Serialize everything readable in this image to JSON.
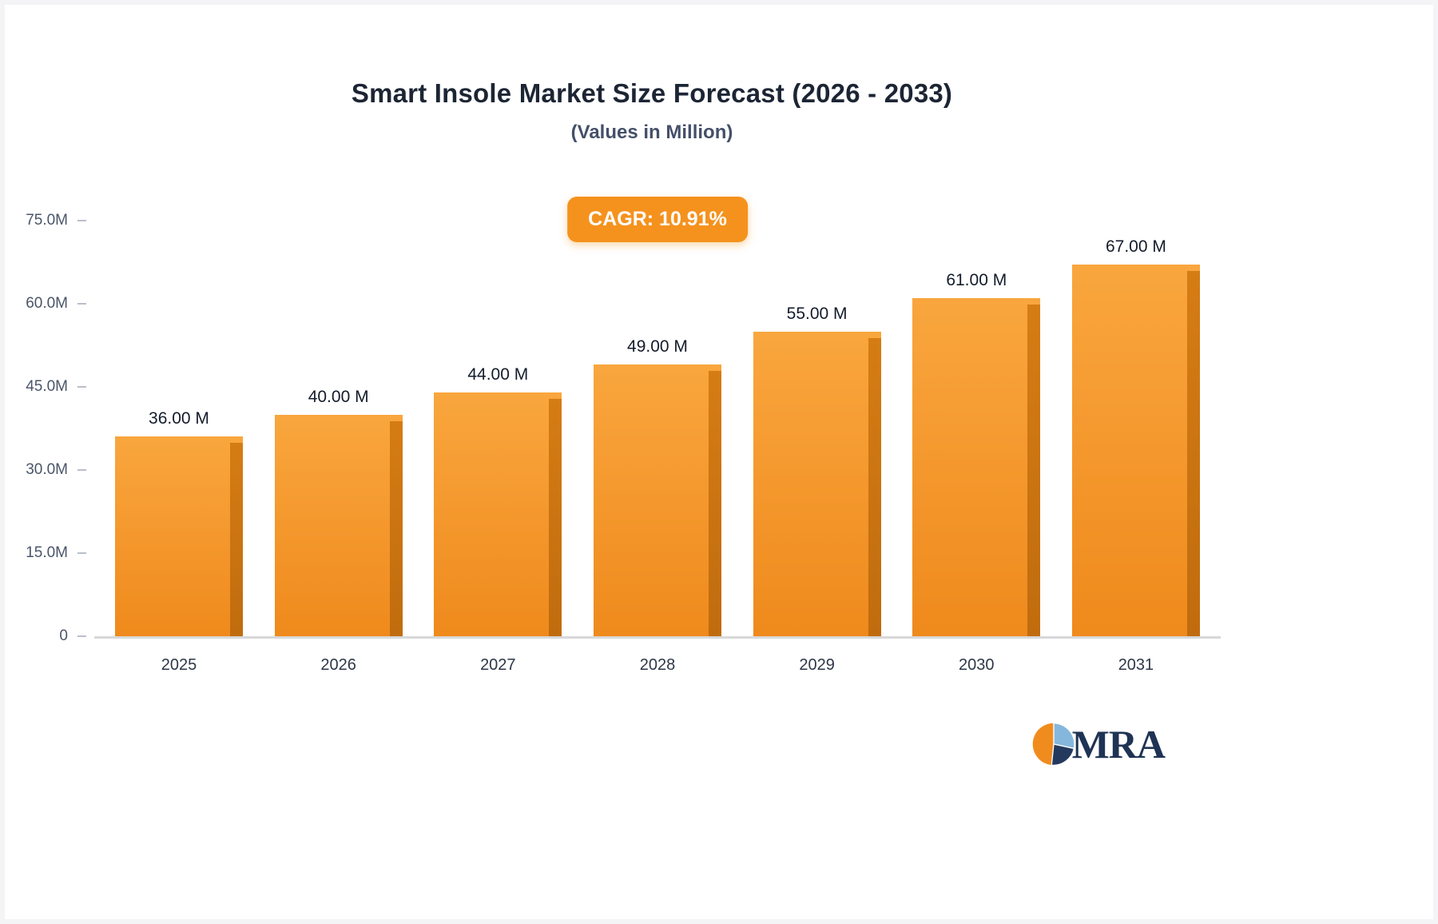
{
  "header": {
    "title": "Smart Insole Market Size Forecast (2026 - 2033)",
    "subtitle": "(Values in Million)"
  },
  "badge": {
    "label": "CAGR: 10.91%",
    "bg_color": "#f5921e",
    "text_color": "#ffffff"
  },
  "chart_data": {
    "type": "bar",
    "categories": [
      "2025",
      "2026",
      "2027",
      "2028",
      "2029",
      "2030",
      "2031"
    ],
    "values": [
      36,
      40,
      44,
      49,
      55,
      61,
      67
    ],
    "value_labels": [
      "36.00 M",
      "40.00 M",
      "44.00 M",
      "49.00 M",
      "55.00 M",
      "61.00 M",
      "67.00 M"
    ],
    "title": "Smart Insole Market Size Forecast (2026 - 2033)",
    "subtitle": "(Values in Million)",
    "annotation": "CAGR: 10.91%",
    "xlabel": "",
    "ylabel": "",
    "ylim": [
      0,
      75
    ],
    "yticks": [
      0,
      15,
      30,
      45,
      60,
      75
    ],
    "ytick_labels": [
      "0",
      "15.0M",
      "30.0M",
      "45.0M",
      "60.0M",
      "75.0M"
    ],
    "grid": false,
    "legend": "none",
    "bar_color_top": "#f9a63e",
    "bar_color_bottom": "#ef8a1c",
    "bar_side_color": "#c06c0e"
  },
  "logo": {
    "text": "MRA"
  }
}
